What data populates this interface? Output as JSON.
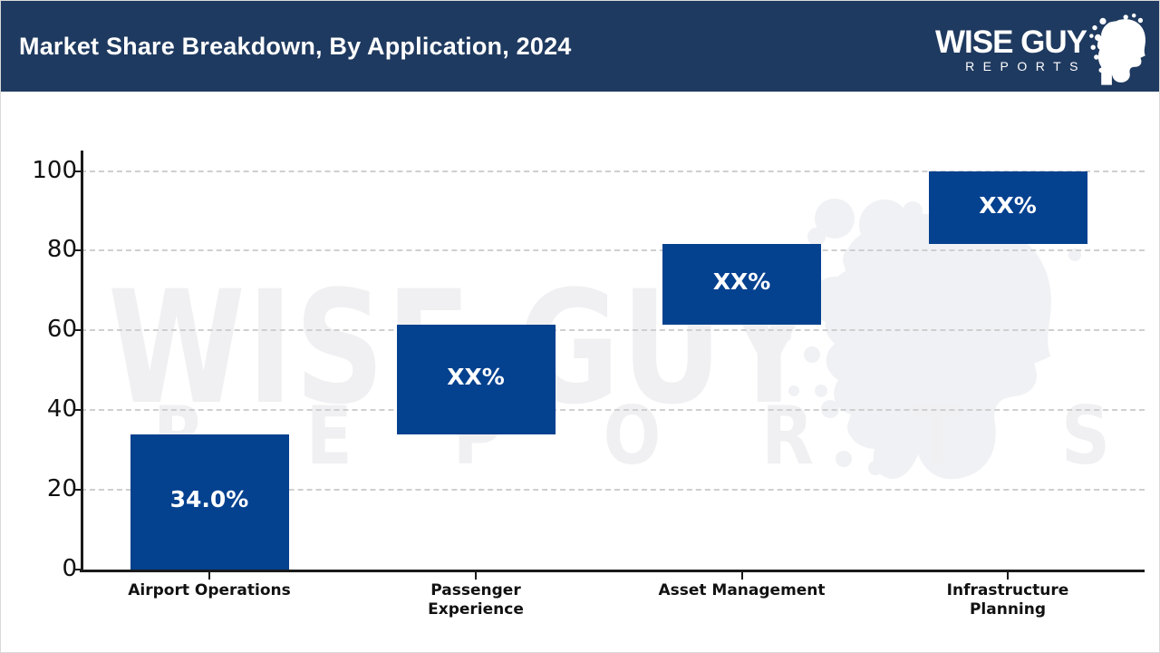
{
  "header": {
    "title": "Market Share Breakdown, By Application, 2024",
    "bg_color": "#1f3a60",
    "logo": {
      "line1": "WISE GUY",
      "line2": "REPORTS"
    }
  },
  "watermark": {
    "line1": "WISE GUY",
    "line2": "R E P O R T S"
  },
  "chart_data": {
    "type": "bar",
    "subtype": "waterfall",
    "title": "Market Share Breakdown, By Application, 2024",
    "categories": [
      "Airport Operations",
      "Passenger Experience",
      "Asset Management",
      "Infrastructure Planning"
    ],
    "xtick_labels": [
      "Airport Operations",
      "Passenger\nExperience",
      "Asset Management",
      "Infrastructure\nPlanning"
    ],
    "segments": [
      {
        "category": "Airport Operations",
        "start": 0,
        "end": 34.0,
        "label": "34.0%"
      },
      {
        "category": "Passenger Experience",
        "start": 34.0,
        "end": 61.5,
        "label": "XX%"
      },
      {
        "category": "Asset Management",
        "start": 61.5,
        "end": 81.7,
        "label": "XX%"
      },
      {
        "category": "Infrastructure Planning",
        "start": 81.7,
        "end": 100.0,
        "label": "XX%"
      }
    ],
    "yticks": [
      0,
      20,
      40,
      60,
      80,
      100
    ],
    "ylim": [
      0,
      105
    ],
    "bar_color": "#04418f",
    "grid": "horizontal-dashed",
    "gridline_color": "#cfcfcf",
    "label_color": "#ffffff",
    "legend": "none"
  }
}
